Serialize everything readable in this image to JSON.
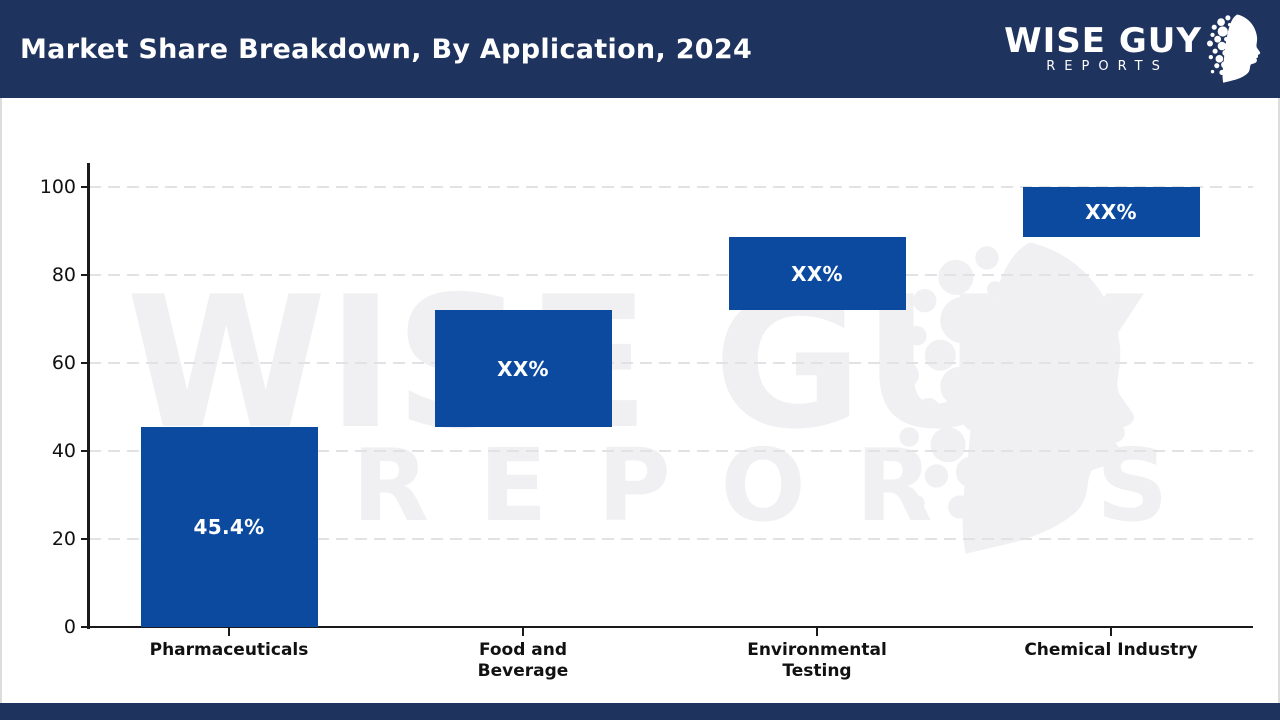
{
  "header": {
    "title": "Market Share Breakdown, By Application, 2024",
    "bg_color": "#1f335f",
    "text_color": "#ffffff",
    "logo": {
      "line1": "WISE GUY",
      "line2": "REPORTS"
    }
  },
  "watermark": {
    "line1": "WISE GUY",
    "line2": "REPORTS"
  },
  "chart_data": {
    "type": "bar",
    "subtype": "waterfall",
    "title": "Market Share Breakdown, By Application, 2024",
    "categories": [
      "Pharmaceuticals",
      "Food and Beverage",
      "Environmental Testing",
      "Chemical Industry"
    ],
    "segments": [
      {
        "category": "Pharmaceuticals",
        "start": 0,
        "end": 45.4,
        "label": "45.4%"
      },
      {
        "category": "Food and Beverage",
        "start": 45.4,
        "end": 72.0,
        "label": "XX%"
      },
      {
        "category": "Environmental Testing",
        "start": 72.0,
        "end": 88.6,
        "label": "XX%"
      },
      {
        "category": "Chemical Industry",
        "start": 88.6,
        "end": 100,
        "label": "XX%"
      }
    ],
    "yticks": [
      0,
      20,
      40,
      60,
      80,
      100
    ],
    "ylim": [
      0,
      105.5
    ],
    "xlabel": "",
    "ylabel": "",
    "bar_color": "#0c4aa0",
    "bar_label_color": "#ffffff",
    "grid": true,
    "grid_style": "dashed",
    "grid_color": "#e2e2e4",
    "axis_color": "#1a1a1a",
    "legend": false
  },
  "footer": {
    "bg_color": "#1f335f"
  }
}
